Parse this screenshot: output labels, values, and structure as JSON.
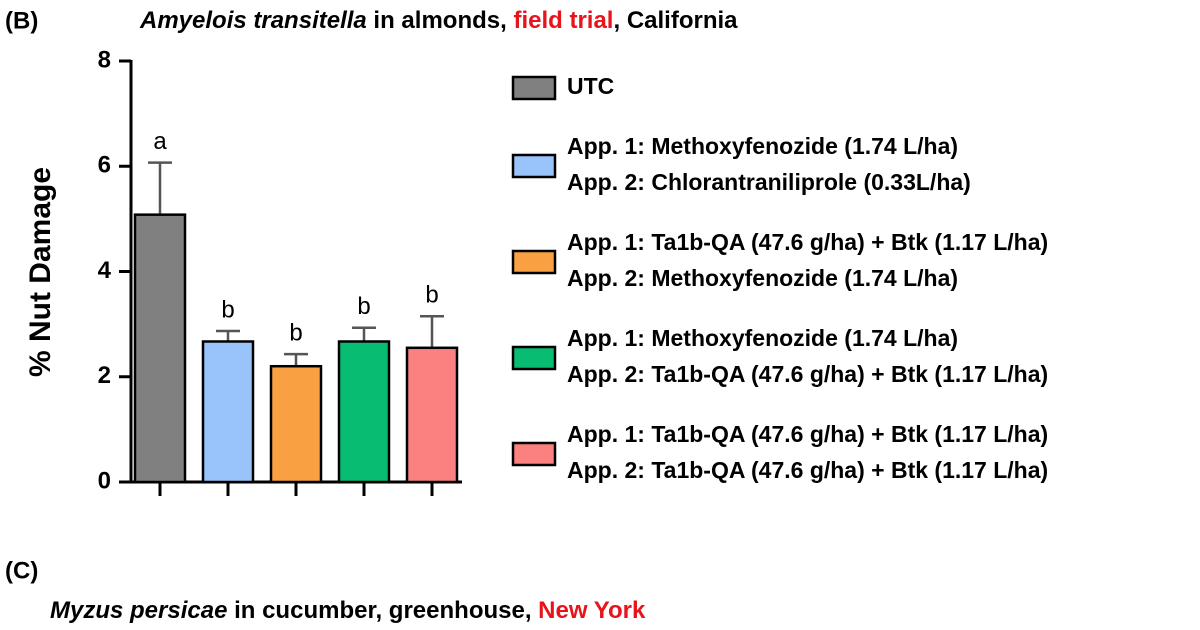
{
  "chart_data": {
    "type": "bar",
    "panel_label": "(B)",
    "title_parts": [
      "Amyelois transitella",
      " in almonds, ",
      "field trial",
      ", California"
    ],
    "ylabel": "% Nut Damage",
    "ylim": [
      0,
      8
    ],
    "yticks": [
      0,
      2,
      4,
      6,
      8
    ],
    "grid": false,
    "series": [
      {
        "name": [
          "UTC"
        ],
        "color": "#808080",
        "values": [
          5.08
        ],
        "errors": [
          0.99
        ],
        "labels": [
          "a"
        ]
      },
      {
        "name": [
          "App. 1: Methoxyfenozide (1.74 L/ha)",
          "App. 2: Chlorantraniliprole (0.33L/ha)"
        ],
        "color": "#99c3fb",
        "values": [
          2.67
        ],
        "errors": [
          0.2
        ],
        "labels": [
          "b"
        ]
      },
      {
        "name": [
          "App. 1: Ta1b-QA (47.6 g/ha) + Btk (1.17 L/ha)",
          "App. 2: Methoxyfenozide (1.74 L/ha)"
        ],
        "color": "#f9a043",
        "values": [
          2.2
        ],
        "errors": [
          0.23
        ],
        "labels": [
          "b"
        ]
      },
      {
        "name": [
          "App. 1: Methoxyfenozide (1.74 L/ha)",
          "App. 2: Ta1b-QA (47.6 g/ha) + Btk (1.17 L/ha)"
        ],
        "color": "#08bd72",
        "values": [
          2.67
        ],
        "errors": [
          0.26
        ],
        "labels": [
          "b"
        ]
      },
      {
        "name": [
          "App. 1: Ta1b-QA (47.6 g/ha) + Btk (1.17 L/ha)",
          "App. 2: Ta1b-QA (47.6 g/ha) + Btk (1.17 L/ha)"
        ],
        "color": "#fb8080",
        "values": [
          2.55
        ],
        "errors": [
          0.6
        ],
        "labels": [
          "b"
        ]
      }
    ]
  },
  "next_panel": {
    "label": "(C)",
    "title_parts": [
      "Myzus persicae",
      " in cucumber, greenhouse, ",
      "New York"
    ]
  }
}
